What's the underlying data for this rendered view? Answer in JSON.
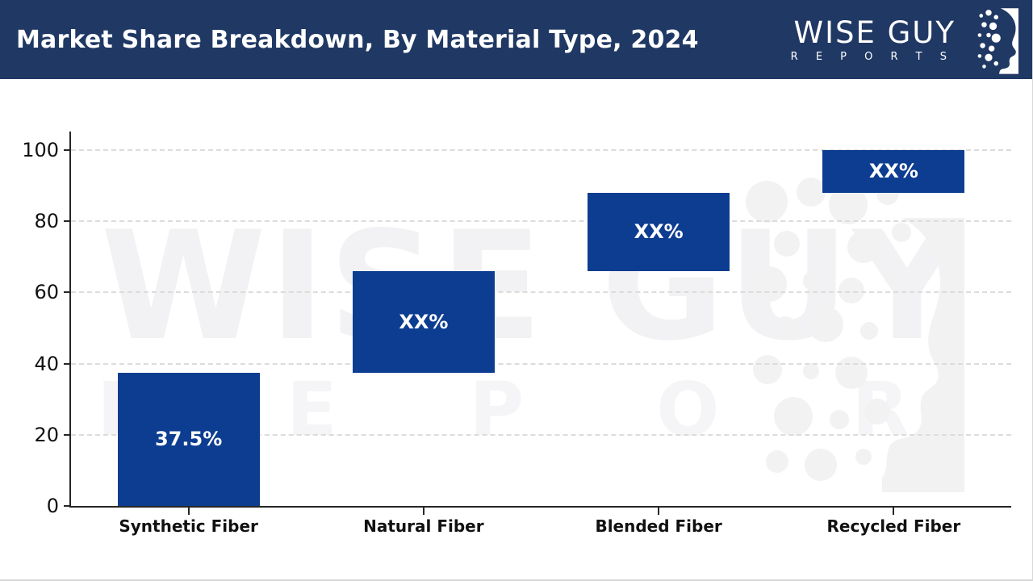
{
  "header": {
    "title": "Market Share Breakdown, By Material Type, 2024",
    "bg_color": "#203864",
    "logo": {
      "line1": "WISE GUY",
      "line2": "R E P O R T S"
    }
  },
  "watermark": {
    "line1": "WISE GUY",
    "line2": "R E P O R T S"
  },
  "chart_data": {
    "type": "bar",
    "subtype": "waterfall",
    "title": "Market Share Breakdown, By Material Type, 2024",
    "categories": [
      "Synthetic Fiber",
      "Natural Fiber",
      "Blended Fiber",
      "Recycled Fiber"
    ],
    "series": [
      {
        "name": "Market Share",
        "segments": [
          {
            "start": 0,
            "end": 37.5,
            "label": "37.5%"
          },
          {
            "start": 37.5,
            "end": 66,
            "label": "XX%"
          },
          {
            "start": 66,
            "end": 88,
            "label": "XX%"
          },
          {
            "start": 88,
            "end": 100,
            "label": "XX%"
          }
        ]
      }
    ],
    "xlabel": "",
    "ylabel": "",
    "ylim": [
      0,
      100
    ],
    "yticks": [
      0,
      20,
      40,
      60,
      80,
      100
    ],
    "grid": "horizontal-dashed",
    "legend": "none",
    "bar_color": "#0d3d90",
    "bar_label_color": "#ffffff",
    "gridline_color": "#dcdcdc",
    "axis_color": "#262626",
    "tick_label_color": "#111111"
  }
}
